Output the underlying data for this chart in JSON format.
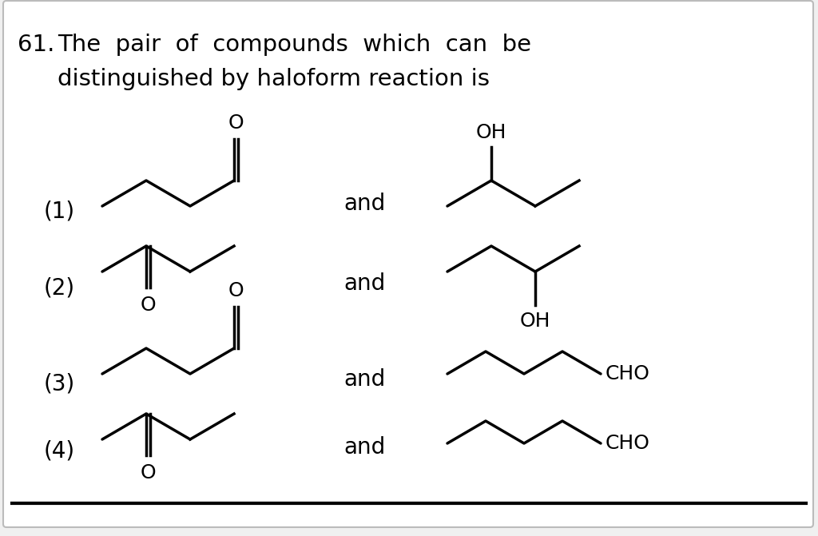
{
  "background_color": "#f0f0f0",
  "card_color": "#ffffff",
  "text_color": "#000000",
  "label_fontsize": 20,
  "title_fontsize": 21,
  "struct_fontsize": 18,
  "figsize": [
    10.24,
    6.71
  ],
  "dpi": 100,
  "lw": 2.5,
  "title_number": "61.",
  "title_line1": "The  pair  of  compounds  which  can  be",
  "title_line2": "distinguished by haloform reaction is"
}
